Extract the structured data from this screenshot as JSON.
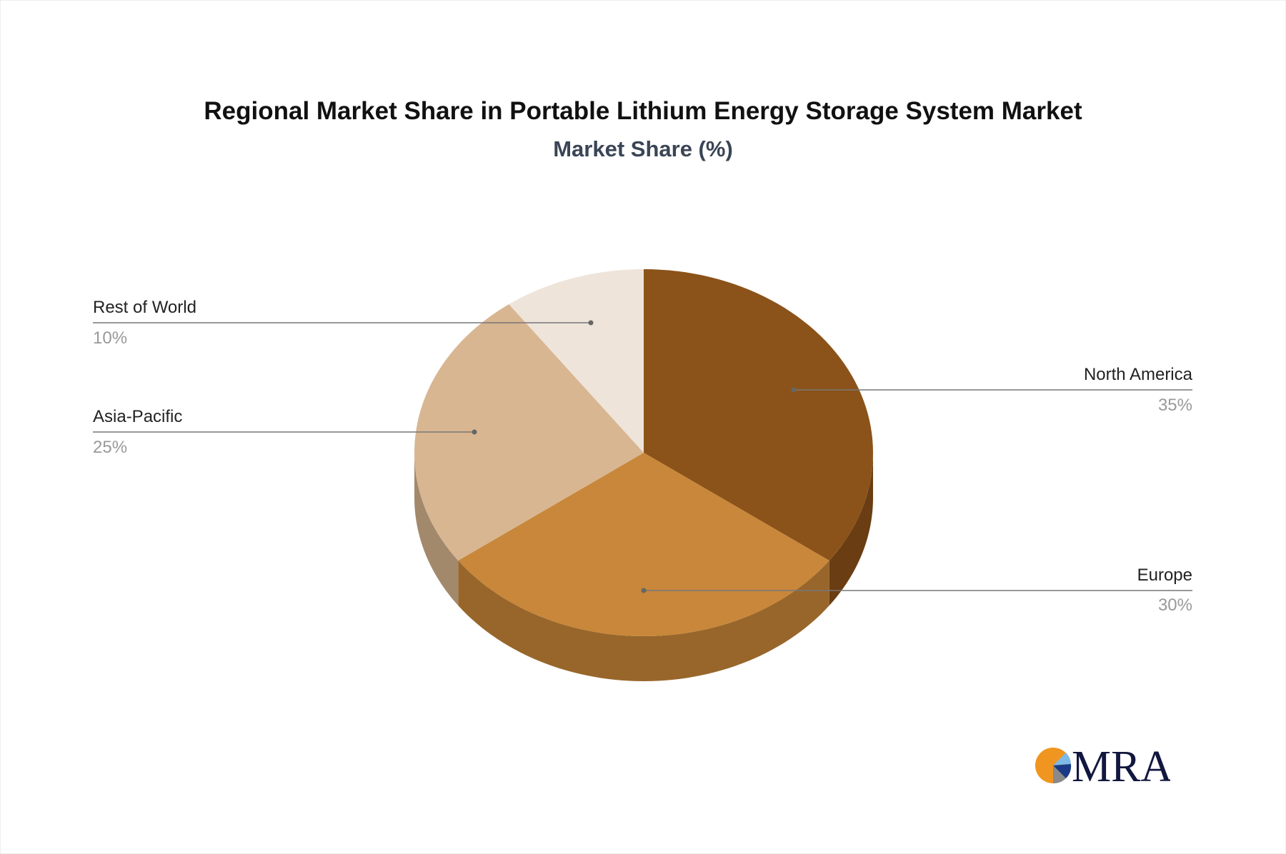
{
  "chart_data": {
    "type": "pie",
    "title": "Regional Market Share in Portable Lithium Energy Storage System Market",
    "subtitle": "Market Share (%)",
    "three_d": true,
    "slices": [
      {
        "label": "North America",
        "value": 35,
        "display": "35%",
        "color": "#8B5319",
        "side_color": "#6A3E12"
      },
      {
        "label": "Europe",
        "value": 30,
        "display": "30%",
        "color": "#C8873A",
        "side_color": "#98662B"
      },
      {
        "label": "Asia-Pacific",
        "value": 25,
        "display": "25%",
        "color": "#D8B691",
        "side_color": "#A3896C"
      },
      {
        "label": "Rest of World",
        "value": 10,
        "display": "10%",
        "color": "#EEE4DA",
        "side_color": "#BFB5AB"
      }
    ]
  },
  "logo": {
    "text": "MRA"
  }
}
